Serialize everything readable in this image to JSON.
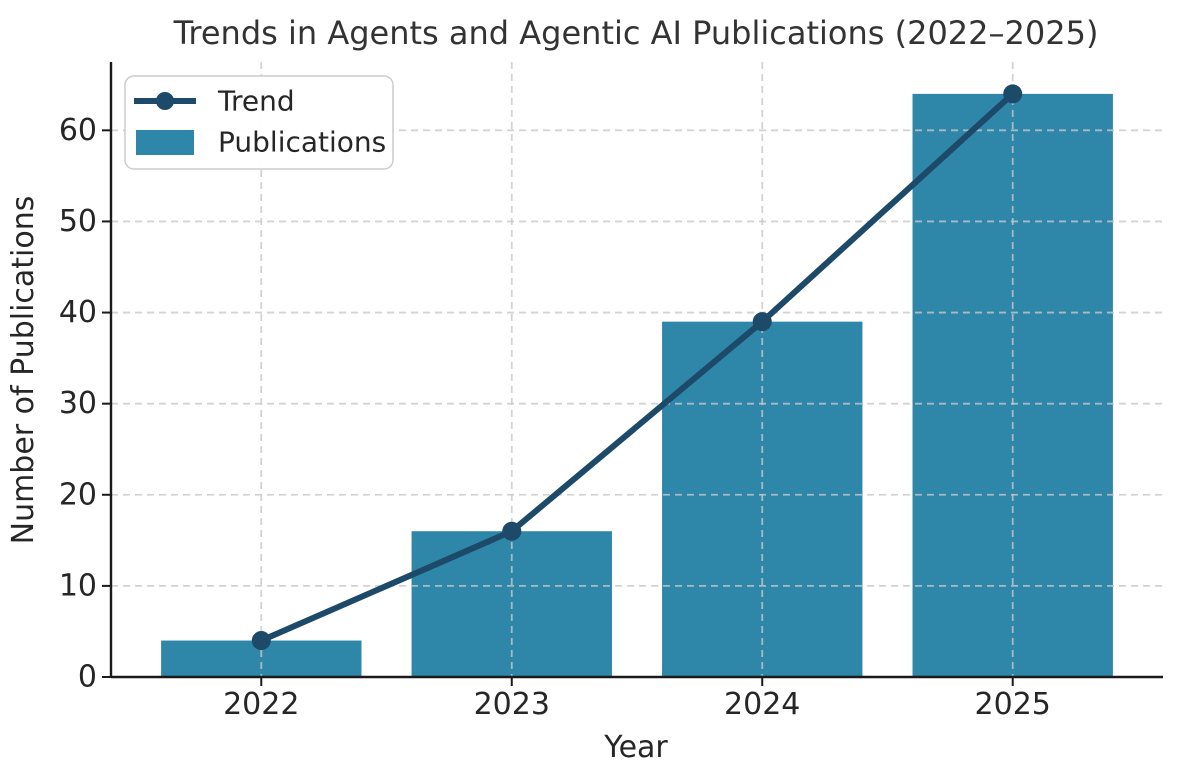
{
  "figure": {
    "background": "#ffffff"
  },
  "chart_data": {
    "type": "bar",
    "title": "Trends in Agents and Agentic AI Publications (2022–2025)",
    "xlabel": "Year",
    "ylabel": "Number of Publications",
    "categories": [
      "2022",
      "2023",
      "2024",
      "2025"
    ],
    "series": [
      {
        "name": "Publications",
        "type": "bar",
        "values": [
          4,
          16,
          39,
          64
        ],
        "color": "#2E86A8"
      },
      {
        "name": "Trend",
        "type": "line",
        "values": [
          4,
          16,
          39,
          64
        ],
        "color": "#1D4A69"
      }
    ],
    "yticks": [
      0,
      10,
      20,
      30,
      40,
      50,
      60
    ],
    "ylim": [
      0,
      67.5
    ],
    "grid": true,
    "grid_color": "#c8c8c8",
    "grid_style": "dashed",
    "axis_color": "#1a1a1a",
    "legend": {
      "position": "upper-left",
      "entries": [
        "Trend",
        "Publications"
      ],
      "border_color": "#cccccc",
      "background": "#ffffff"
    }
  }
}
